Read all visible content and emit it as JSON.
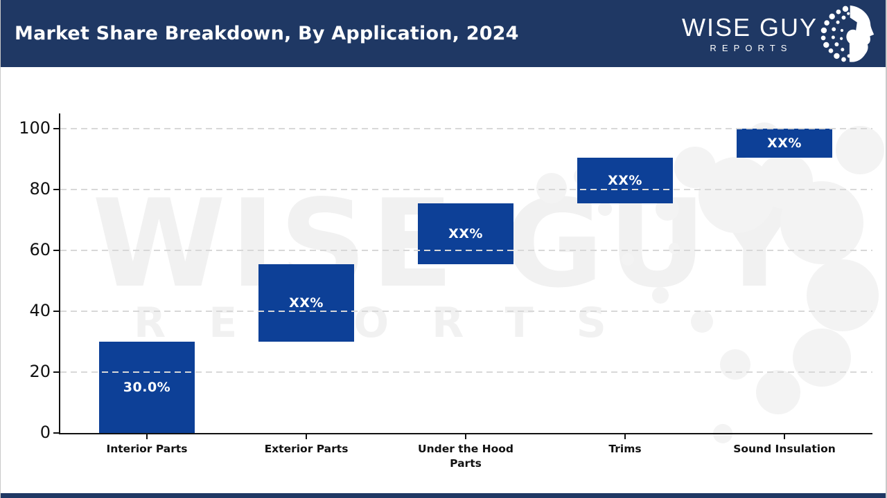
{
  "header": {
    "title": "Market Share Breakdown, By Application, 2024",
    "bg_color": "#1f3864",
    "logo": {
      "line1": "WISE GUY",
      "line2": "REPORTS"
    }
  },
  "watermark": {
    "line1": "WISE GUY",
    "line2": "REPORTS"
  },
  "chart_data": {
    "type": "bar",
    "subtype": "waterfall-floating-bars",
    "title": "Market Share Breakdown, By Application, 2024",
    "xlabel": "",
    "ylabel": "",
    "categories": [
      "Interior Parts",
      "Exterior Parts",
      "Under the Hood Parts",
      "Trims",
      "Sound Insulation"
    ],
    "segments": [
      {
        "category": "Interior Parts",
        "start": 0,
        "end": 30,
        "label": "30.0%"
      },
      {
        "category": "Exterior Parts",
        "start": 30,
        "end": 55.4,
        "label": "XX%"
      },
      {
        "category": "Under the Hood Parts",
        "start": 55.4,
        "end": 75.4,
        "label": "XX%"
      },
      {
        "category": "Trims",
        "start": 75.4,
        "end": 90.4,
        "label": "XX%"
      },
      {
        "category": "Sound Insulation",
        "start": 90.4,
        "end": 100,
        "label": "XX%"
      }
    ],
    "yticks": [
      0,
      20,
      40,
      60,
      80,
      100
    ],
    "ylim": [
      0,
      105
    ],
    "grid": true,
    "gridline_style": "dashed",
    "legend": "none",
    "bar_color": "#0d4097",
    "grid_color": "#d8d8d8",
    "axis_color": "#111111",
    "label_color": "#ffffff"
  }
}
